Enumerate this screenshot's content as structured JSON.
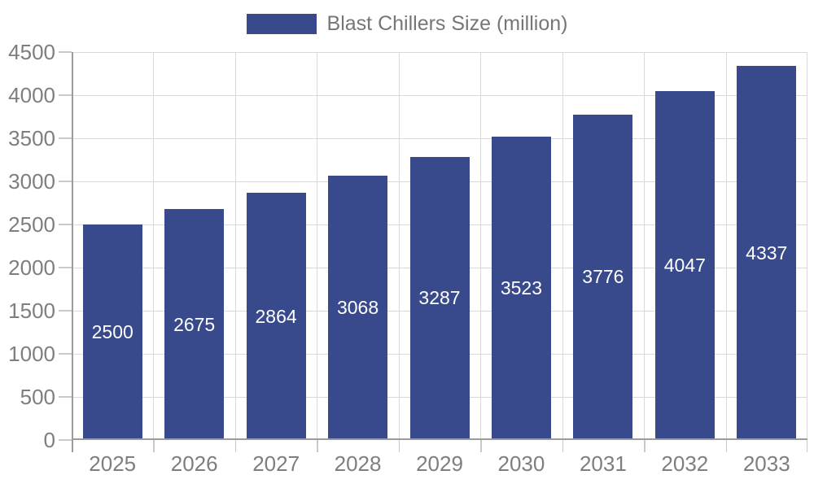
{
  "chart_data": {
    "type": "bar",
    "title": "Blast Chillers Size (million)",
    "categories": [
      "2025",
      "2026",
      "2027",
      "2028",
      "2029",
      "2030",
      "2031",
      "2032",
      "2033"
    ],
    "series": [
      {
        "name": "Blast Chillers Size (million)",
        "values": [
          2500,
          2675,
          2864,
          3068,
          3287,
          3523,
          3776,
          4047,
          4337
        ]
      }
    ],
    "bar_value_labels": [
      "2500",
      "2675",
      "2864",
      "3068",
      "3287",
      "3523",
      "3776",
      "4047",
      "4337"
    ],
    "xlabel": "",
    "ylabel": "",
    "ylim": [
      0,
      4500
    ],
    "ytick_step": 500,
    "yticks": [
      "0",
      "500",
      "1000",
      "1500",
      "2000",
      "2500",
      "3000",
      "3500",
      "4000",
      "4500"
    ],
    "grid": "horizontal-and-vertical",
    "legend_position": "top-center",
    "colors": {
      "bar_fill": "#394a8c",
      "bar_value_label": "#ffffff",
      "axis_line": "#9b9b9b",
      "tick_line": "#c9c9c9",
      "gridline": "#d9d9d9",
      "axis_label_text": "#7e7e82",
      "legend_text": "#76767a",
      "background": "#ffffff"
    }
  }
}
